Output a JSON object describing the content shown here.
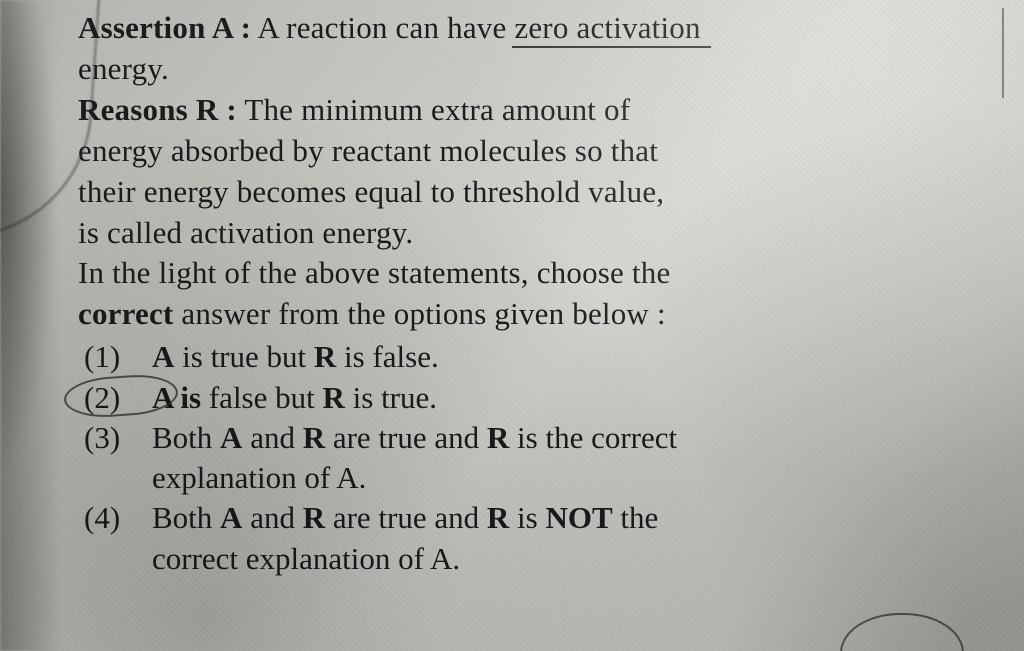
{
  "assertion": {
    "label": "Assertion A :",
    "line1_rest": " A reaction can have ",
    "line1_emph": "zero activation",
    "line2": "energy."
  },
  "reason": {
    "label": "Reasons R :",
    "line1_rest": " The minimum extra amount of",
    "line2": "energy absorbed by reactant molecules so that",
    "line3": "their energy becomes equal to threshold value,",
    "line4": "is called activation energy."
  },
  "prompt": {
    "line1a": "In the light of the above statements, choose the",
    "line2_bold": "correct",
    "line2_rest": " answer from the options given below :"
  },
  "options": [
    {
      "num": "(1)",
      "parts": [
        {
          "t": "A",
          "b": true
        },
        {
          "t": " is true but "
        },
        {
          "t": "R",
          "b": true
        },
        {
          "t": " is false."
        }
      ]
    },
    {
      "num": "(2)",
      "parts": [
        {
          "t": "A is",
          "b": true,
          "strike_style": true
        },
        {
          "t": " false but "
        },
        {
          "t": "R",
          "b": true
        },
        {
          "t": " is true."
        }
      ]
    },
    {
      "num": "(3)",
      "parts": [
        {
          "t": "Both "
        },
        {
          "t": "A",
          "b": true
        },
        {
          "t": " and "
        },
        {
          "t": "R",
          "b": true
        },
        {
          "t": " are true and "
        },
        {
          "t": "R",
          "b": true
        },
        {
          "t": " is the correct"
        }
      ],
      "cont": "explanation of A."
    },
    {
      "num": "(4)",
      "parts": [
        {
          "t": "Both "
        },
        {
          "t": "A",
          "b": true
        },
        {
          "t": " and "
        },
        {
          "t": "R",
          "b": true
        },
        {
          "t": " are true and "
        },
        {
          "t": "R",
          "b": true
        },
        {
          "t": " is "
        },
        {
          "t": "NOT",
          "b": true
        },
        {
          "t": " the"
        }
      ],
      "cont": "correct explanation of A."
    }
  ],
  "colors": {
    "text": "#1a1a1a"
  }
}
